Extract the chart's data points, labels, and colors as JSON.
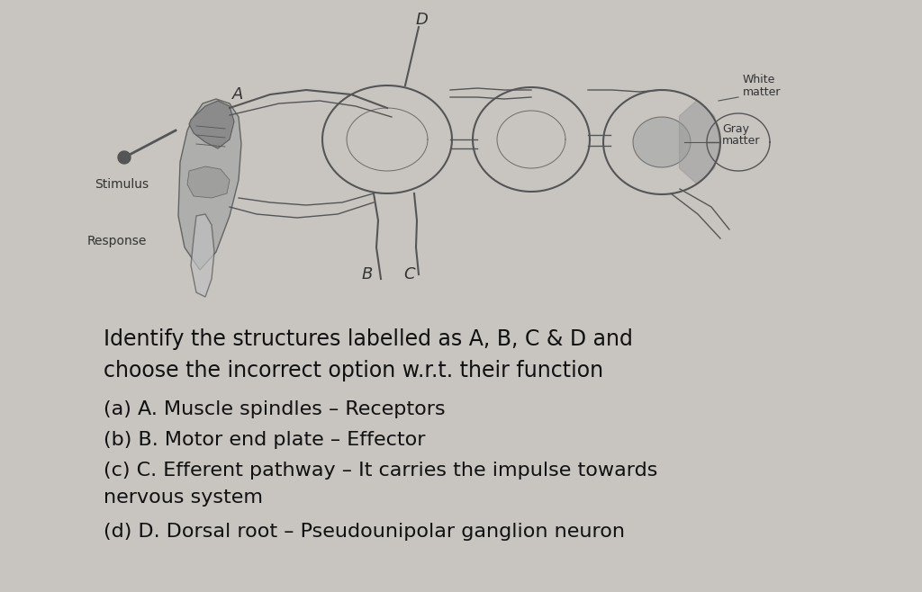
{
  "bg_color": "#c8c5c0",
  "title_text1": "Identify the structures labelled as A, B, C & D and",
  "title_text2": "choose the incorrect option w.r.t. their function",
  "options": [
    "(a) A. Muscle spindles – Receptors",
    "(b) B. Motor end plate – Effector",
    "(c) C. Efferent pathway – It carries the impulse towards",
    "nervous system",
    "(d) D. Dorsal root – Pseudounipolar ganglion neuron"
  ],
  "label_A": "A",
  "label_B": "B",
  "label_C": "C",
  "label_D": "D",
  "label_stimulus": "Stimulus",
  "label_response": "Response",
  "label_white_matter": "White\nmatter",
  "label_gray_matter": "Gray\nmatter",
  "diagram_color": "#555555",
  "fill_dark": "#999999",
  "fill_light": "#bbbbbb",
  "text_color": "#111111",
  "diagram_label_color": "#333333",
  "title_fontsize": 17,
  "option_fontsize": 16,
  "label_fontsize": 13,
  "small_label_fontsize": 10
}
